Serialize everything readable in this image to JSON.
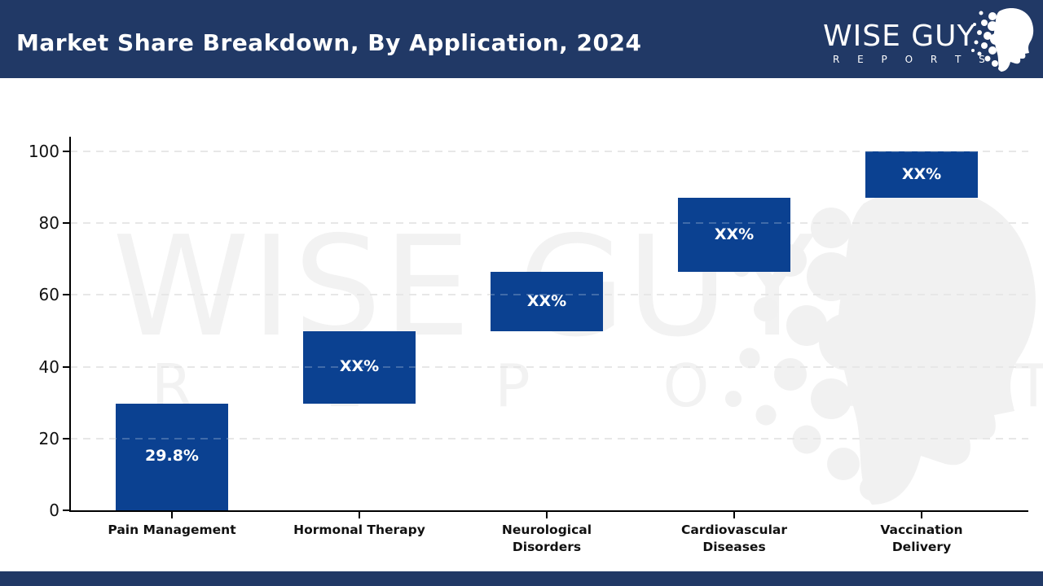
{
  "header": {
    "title": "Market Share Breakdown, By Application, 2024",
    "logo": {
      "line1": "WISE GUY",
      "line2": "R E P O R T S"
    }
  },
  "watermark": {
    "line1": "WISE GUY",
    "line2": "R E P O R T S"
  },
  "footer": {},
  "colors": {
    "header_bg": "#213966",
    "footer_bg": "#213966",
    "bar": "#0b4191",
    "bar_label": "#ffffff",
    "gridline": "#e0e0e0",
    "watermark": "#f2f2f2",
    "axis": "#000000"
  },
  "chart_data": {
    "type": "bar",
    "subtype": "waterfall",
    "title": "Market Share Breakdown, By Application, 2024",
    "xlabel": "",
    "ylabel": "",
    "categories": [
      "Pain Management",
      "Hormonal Therapy",
      "Neurological Disorders",
      "Cardiovascular Diseases",
      "Vaccination Delivery"
    ],
    "category_label_lines": [
      [
        "Pain Management"
      ],
      [
        "Hormonal Therapy"
      ],
      [
        "Neurological",
        "Disorders"
      ],
      [
        "Cardiovascular",
        "Diseases"
      ],
      [
        "Vaccination",
        "Delivery"
      ]
    ],
    "series": [
      {
        "name": "Market Share",
        "segments": [
          {
            "category": "Pain Management",
            "start": 0,
            "end": 29.8,
            "label": "29.8%"
          },
          {
            "category": "Hormonal Therapy",
            "start": 29.8,
            "end": 49.8,
            "label": "XX%"
          },
          {
            "category": "Neurological Disorders",
            "start": 49.8,
            "end": 66.5,
            "label": "XX%"
          },
          {
            "category": "Cardiovascular Diseases",
            "start": 66.5,
            "end": 87.0,
            "label": "XX%"
          },
          {
            "category": "Vaccination Delivery",
            "start": 87.0,
            "end": 100,
            "label": "XX%"
          }
        ]
      }
    ],
    "yticks": [
      0,
      20,
      40,
      60,
      80,
      100
    ],
    "ylim": [
      0,
      104
    ],
    "grid": "horizontal-dashed",
    "legend": "none"
  }
}
